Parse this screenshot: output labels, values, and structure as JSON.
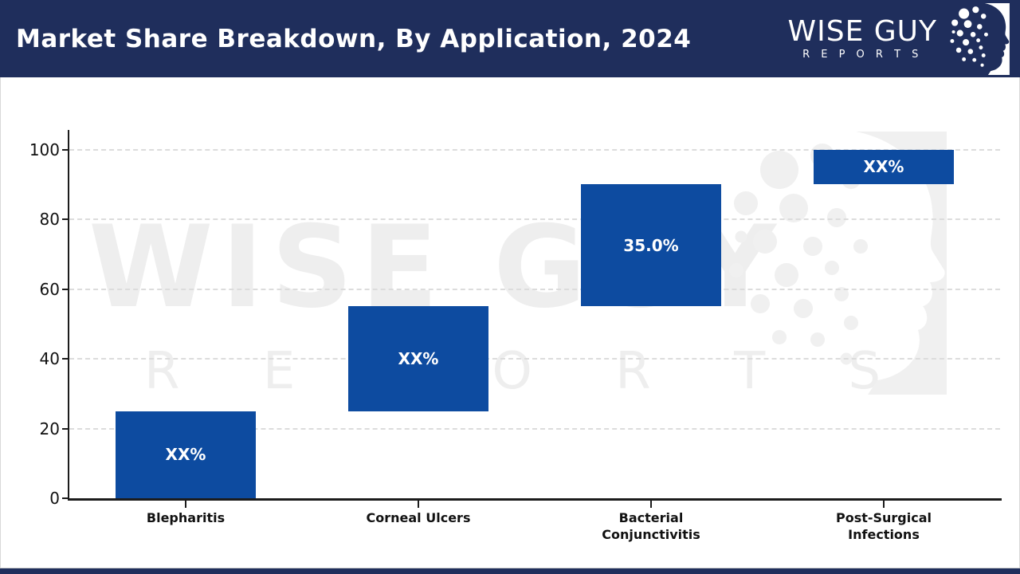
{
  "header": {
    "title": "Market Share Breakdown, By Application, 2024",
    "bg_color": "#1f2e5c",
    "logo": {
      "wordmark": "WISE GUY",
      "sub": "R E P O R T S",
      "icon": "dotted-head-profile"
    }
  },
  "watermark": {
    "line1": "WISE GUY",
    "line2": "R E P O R T S",
    "icon": "dotted-head-profile"
  },
  "chart_data": {
    "type": "bar",
    "subtype": "waterfall",
    "title": "Market Share Breakdown, By Application, 2024",
    "xlabel": "",
    "ylabel": "",
    "ylim": [
      0,
      105.6
    ],
    "yticks": [
      0,
      20,
      40,
      60,
      80,
      100
    ],
    "grid": "horizontal-dashed",
    "legend": null,
    "bar_color": "#0d4ba0",
    "bar_label_color": "#ffffff",
    "categories": [
      "Blepharitis",
      "Corneal Ulcers",
      "Bacterial Conjunctivitis",
      "Post-Surgical Infections"
    ],
    "bars": [
      {
        "category": "Blepharitis",
        "lines": [
          "Blepharitis"
        ],
        "start": 0,
        "end": 25,
        "value": 25,
        "label": "XX%"
      },
      {
        "category": "Corneal Ulcers",
        "lines": [
          "Corneal Ulcers"
        ],
        "start": 25,
        "end": 55,
        "value": 30,
        "label": "XX%"
      },
      {
        "category": "Bacterial Conjunctivitis",
        "lines": [
          "Bacterial",
          "Conjunctivitis"
        ],
        "start": 55,
        "end": 90,
        "value": 35,
        "label": "35.0%"
      },
      {
        "category": "Post-Surgical Infections",
        "lines": [
          "Post-Surgical",
          "Infections"
        ],
        "start": 90,
        "end": 100,
        "value": 10,
        "label": "XX%"
      }
    ]
  },
  "footer": {
    "bar_color": "#1f2e5c"
  }
}
